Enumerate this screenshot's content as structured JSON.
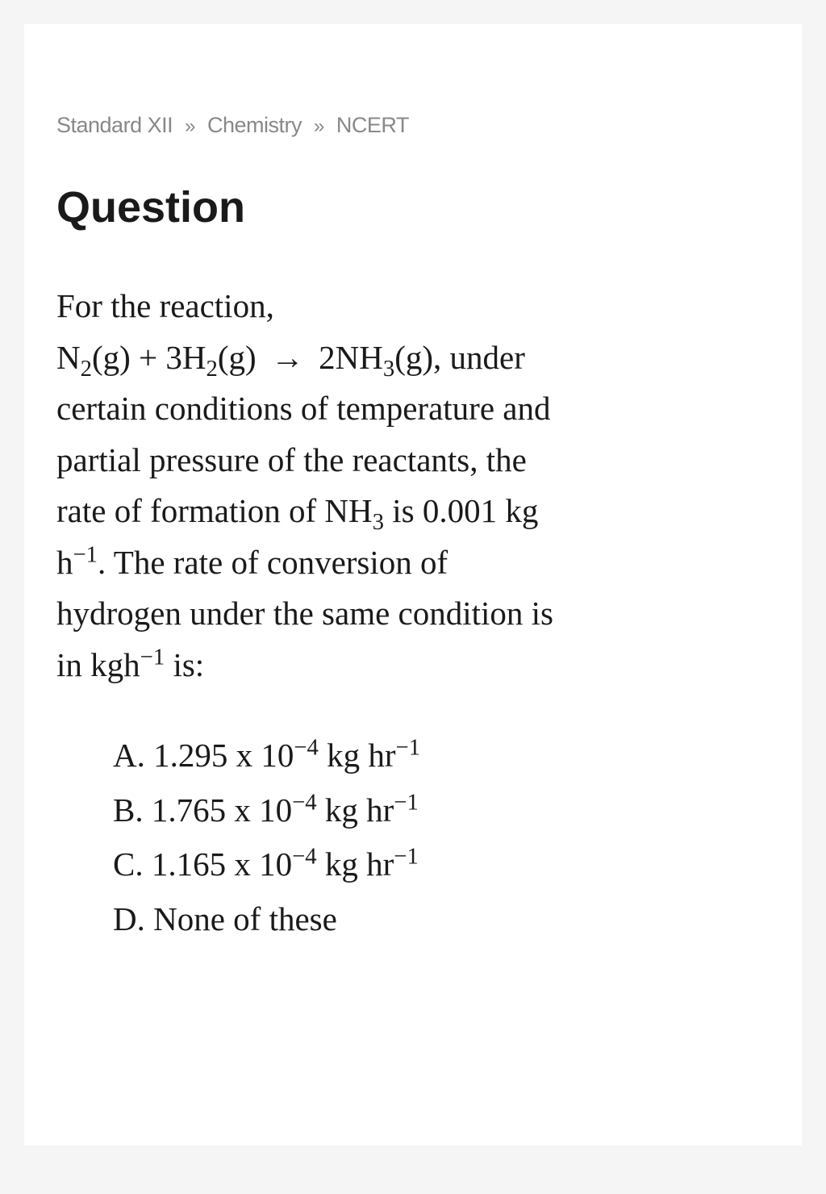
{
  "breadcrumb": {
    "item1": "Standard XII",
    "sep": "»",
    "item2": "Chemistry",
    "item3": "NCERT"
  },
  "heading": "Question",
  "question": {
    "line1": "For the reaction,",
    "reactant1": "N",
    "reactant1_sub": "2",
    "reactant1_state": "(g) + 3H",
    "reactant2_sub": "2",
    "reactant2_state": "(g)",
    "arrow": "→",
    "product_coef": "2NH",
    "product_sub": "3",
    "product_state": "(g), under",
    "line3": "certain conditions of temperature and",
    "line4": "partial pressure of the reactants, the",
    "line5_a": "rate of formation of NH",
    "line5_sub": "3",
    "line5_b": " is 0.001 kg",
    "line6_a": "h",
    "line6_sup": "−1",
    "line6_b": ". The rate of conversion of",
    "line7": "hydrogen under the same condition is",
    "line8_a": "in kgh",
    "line8_sup": "−1",
    "line8_b": " is:"
  },
  "options": {
    "a": {
      "label": "A. 1.295 x 10",
      "sup1": "−4",
      "mid": " kg hr",
      "sup2": "−1"
    },
    "b": {
      "label": "B. 1.765 x 10",
      "sup1": "−4",
      "mid": " kg hr",
      "sup2": "−1"
    },
    "c": {
      "label": "C. 1.165 x 10",
      "sup1": "−4",
      "mid": " kg hr",
      "sup2": "−1"
    },
    "d": {
      "label": "D. None of these"
    }
  },
  "colors": {
    "page_background": "#f5f5f5",
    "container_background": "#ffffff",
    "breadcrumb_text": "#888888",
    "body_text": "#1a1a1a"
  },
  "typography": {
    "breadcrumb_fontsize": 27,
    "heading_fontsize": 54,
    "body_fontsize": 41,
    "heading_weight": 700
  }
}
